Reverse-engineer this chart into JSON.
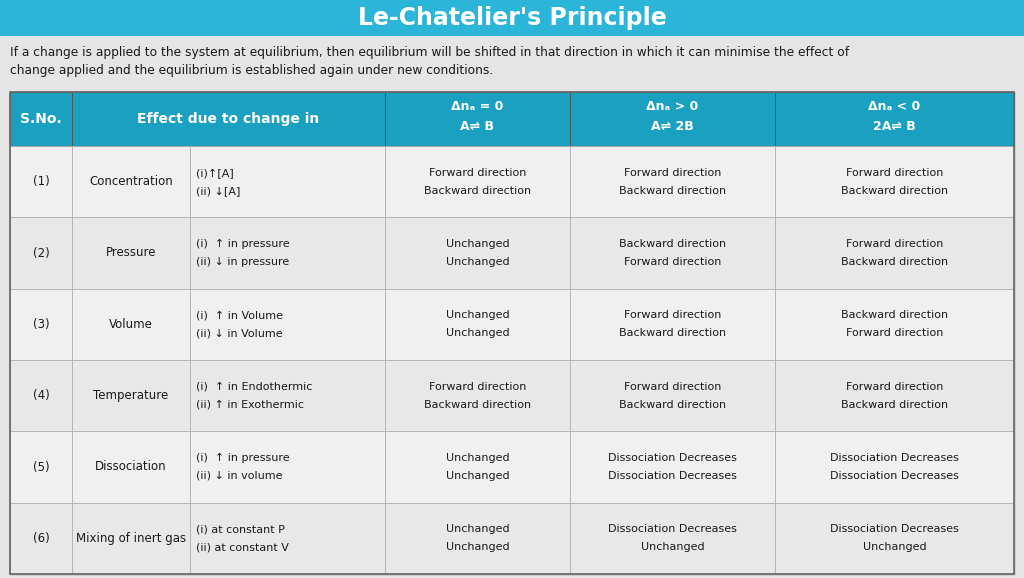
{
  "title": "Le-Chatelier's Principle",
  "subtitle1": "If a change is applied to the system at equilibrium, then equilibrium will be shifted in that direction in which it can minimise the effect of",
  "subtitle2": "change applied and the equilibrium is established again under new conditions.",
  "rows": [
    {
      "sno": "(1)",
      "effect": "Concentration",
      "sub1": "(i)↑[A]",
      "sub2": "(ii) ↓[A]",
      "col3a": "Forward direction",
      "col3b": "Backward direction",
      "col4a": "Forward direction",
      "col4b": "Backward direction",
      "col5a": "Forward direction",
      "col5b": "Backward direction"
    },
    {
      "sno": "(2)",
      "effect": "Pressure",
      "sub1": "(i)  ↑ in pressure",
      "sub2": "(ii) ↓ in pressure",
      "col3a": "Unchanged",
      "col3b": "Unchanged",
      "col4a": "Backward direction",
      "col4b": "Forward direction",
      "col5a": "Forward direction",
      "col5b": "Backward direction"
    },
    {
      "sno": "(3)",
      "effect": "Volume",
      "sub1": "(i)  ↑ in Volume",
      "sub2": "(ii) ↓ in Volume",
      "col3a": "Unchanged",
      "col3b": "Unchanged",
      "col4a": "Forward direction",
      "col4b": "Backward direction",
      "col5a": "Backward direction",
      "col5b": "Forward direction"
    },
    {
      "sno": "(4)",
      "effect": "Temperature",
      "sub1": "(i)  ↑ in Endothermic",
      "sub2": "(ii) ↑ in Exothermic",
      "col3a": "Forward direction",
      "col3b": "Backward direction",
      "col4a": "Forward direction",
      "col4b": "Backward direction",
      "col5a": "Forward direction",
      "col5b": "Backward direction"
    },
    {
      "sno": "(5)",
      "effect": "Dissociation",
      "sub1": "(i)  ↑ in pressure",
      "sub2": "(ii) ↓ in volume",
      "col3a": "Unchanged",
      "col3b": "Unchanged",
      "col4a": "Dissociation Decreases",
      "col4b": "Dissociation Decreases",
      "col5a": "Dissociation Decreases",
      "col5b": "Dissociation Decreases"
    },
    {
      "sno": "(6)",
      "effect": "Mixing of inert gas",
      "sub1": "(i) at constant P",
      "sub2": "(ii) at constant V",
      "col3a": "Unchanged",
      "col3b": "Unchanged",
      "col4a": "Dissociation Decreases",
      "col4b": "Unchanged",
      "col5a": "Dissociation Decreases",
      "col5b": "Unchanged"
    }
  ],
  "title_bg": "#2ab5d9",
  "header_bg": "#1aa0c0",
  "header_text_color": "#ffffff",
  "row_bg_light": "#f0f0f0",
  "row_bg_white": "#e8e8e8",
  "body_text_color": "#1a1a1a",
  "border_color": "#999999",
  "fig_bg": "#cccccc",
  "page_bg": "#e5e5e5",
  "table_bg": "#d5d5d5"
}
